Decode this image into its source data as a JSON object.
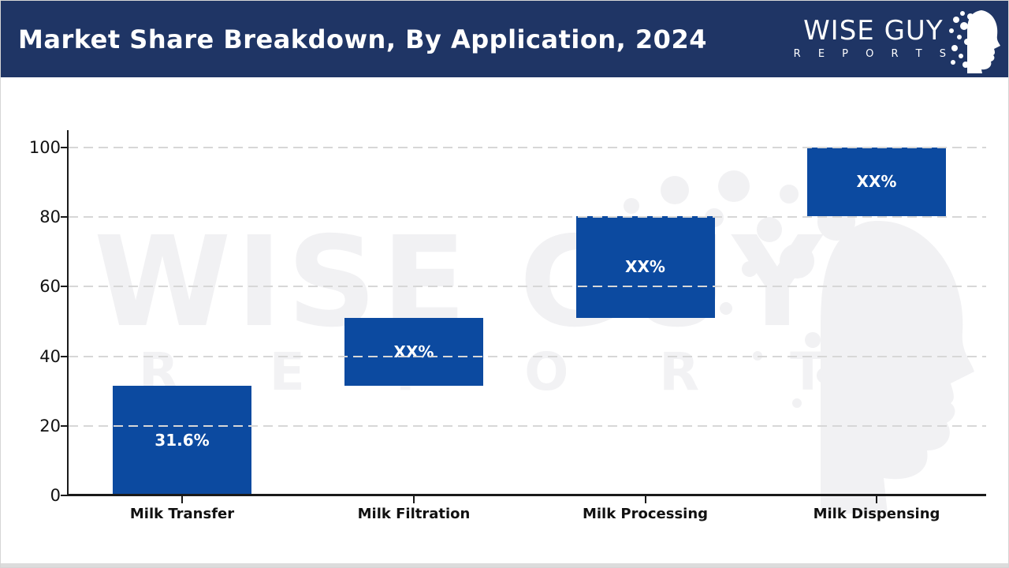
{
  "header": {
    "title": "Market Share Breakdown, By Application, 2024",
    "bg_color": "#1f3565",
    "logo": {
      "line1": "WISE GUY",
      "line2": "R E P O R T S"
    }
  },
  "watermark": {
    "line1": "WISE GUY",
    "line2": "R E P O R T S"
  },
  "chart_data": {
    "type": "bar",
    "subtype": "waterfall",
    "title": "Market Share Breakdown, By Application, 2024",
    "categories": [
      "Milk Transfer",
      "Milk Filtration",
      "Milk Processing",
      "Milk Dispensing"
    ],
    "segments": [
      {
        "category": "Milk Transfer",
        "start": 0,
        "end": 31.6,
        "value_label": "31.6%"
      },
      {
        "category": "Milk Filtration",
        "start": 31.6,
        "end": 51.0,
        "value_label": "XX%"
      },
      {
        "category": "Milk Processing",
        "start": 51.0,
        "end": 80.3,
        "value_label": "XX%"
      },
      {
        "category": "Milk Dispensing",
        "start": 80.3,
        "end": 100.0,
        "value_label": "XX%"
      }
    ],
    "y_ticks": [
      0,
      20,
      40,
      60,
      80,
      100
    ],
    "ylim": [
      0,
      105
    ],
    "xlabel": "",
    "ylabel": "",
    "grid": "horizontal dashed, drawn over bars",
    "legend": "none",
    "bar_color": "#0c4aa0",
    "grid_color": "#d7d7d7"
  },
  "footer": {
    "strip_color": "#dcdcdc"
  }
}
